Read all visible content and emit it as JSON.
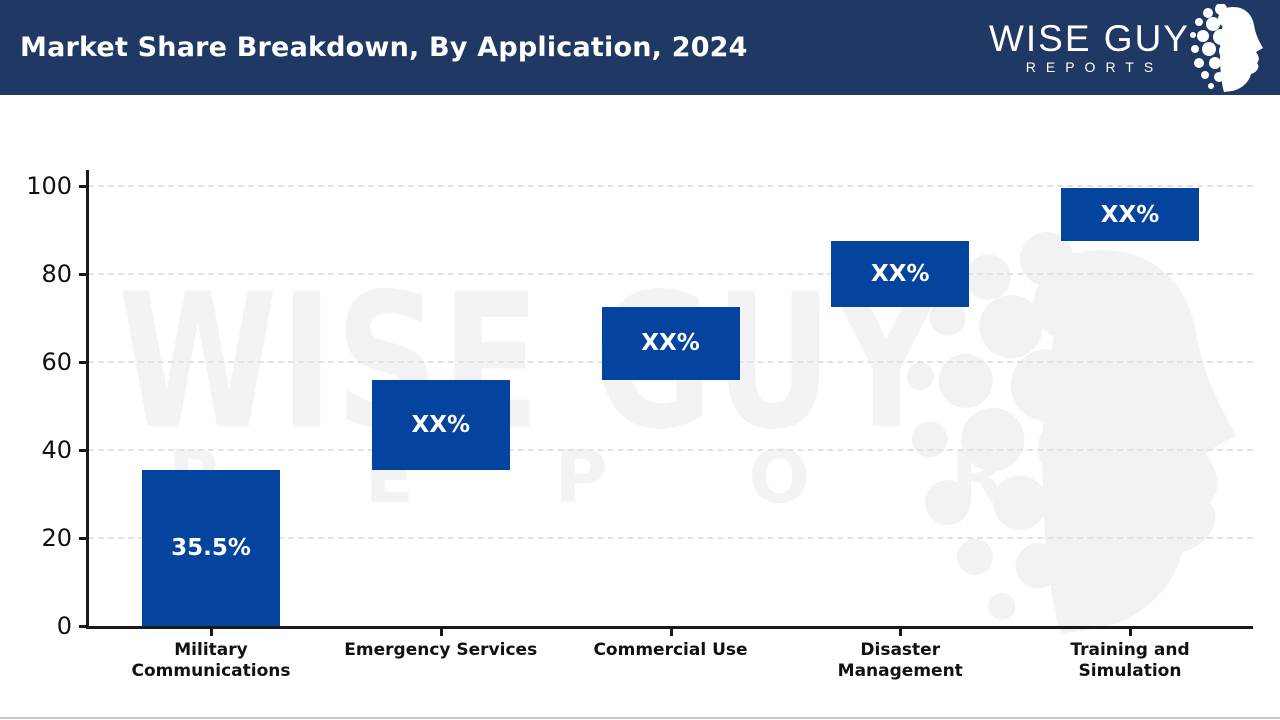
{
  "header": {
    "title": "Market Share Breakdown, By Application, 2024",
    "bg_color": "#1f3864",
    "logo": {
      "line1": "WISE GUY",
      "line2": "REPORTS"
    }
  },
  "watermark": {
    "line1": "WISE GUY",
    "line2": "R E P O R T S"
  },
  "chart_data": {
    "type": "bar",
    "subtype": "floating-waterfall",
    "title": "Market Share Breakdown, By Application, 2024",
    "xlabel": "",
    "ylabel": "",
    "categories": [
      "Military\nCommunications",
      "Emergency Services",
      "Commercial Use",
      "Disaster\nManagement",
      "Training and\nSimulation"
    ],
    "series": [
      {
        "name": "Market Share (%)",
        "segments": [
          {
            "category": "Military Communications",
            "start": 0,
            "end": 35.5,
            "label": "35.5%"
          },
          {
            "category": "Emergency Services",
            "start": 35.5,
            "end": 56,
            "label": "XX%"
          },
          {
            "category": "Commercial Use",
            "start": 56,
            "end": 72.5,
            "label": "XX%"
          },
          {
            "category": "Disaster Management",
            "start": 72.5,
            "end": 87.5,
            "label": "XX%"
          },
          {
            "category": "Training and Simulation",
            "start": 87.5,
            "end": 99.5,
            "label": "XX%"
          }
        ]
      }
    ],
    "yticks": [
      0,
      20,
      40,
      60,
      80,
      100
    ],
    "ylim": [
      0,
      103.6
    ],
    "grid": "horizontal-dashed",
    "legend": "none",
    "bar_color": "#05449e",
    "axis_color": "#1a1a1a",
    "gridline_color": "#e2e2e2",
    "value_label_color": "#ffffff"
  }
}
